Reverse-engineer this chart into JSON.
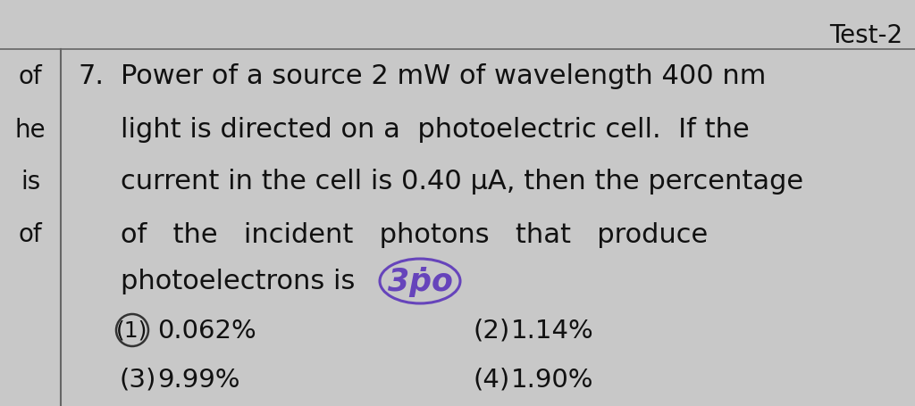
{
  "title": "Test-2",
  "bg_color": "#c8c8c8",
  "paper_color": "#d4d4d4",
  "question_number": "7.",
  "left_labels": [
    "of",
    "he",
    "is",
    "of"
  ],
  "line1": "Power of a source 2 mW of wavelength 400 nm",
  "line2": "light is directed on a  photoelectric cell.  If the",
  "line3": "current in the cell is 0.40 μA, then the percentage",
  "line4": "of   the   incident   photons   that   produce",
  "line5": "photoelectrons is",
  "annot_text": "3ṗo",
  "opt1_num": "(1)",
  "opt1_txt": "0.062%",
  "opt2_num": "(2)",
  "opt2_txt": "1.14%",
  "opt3_num": "(3)",
  "opt3_txt": "9.99%",
  "opt4_num": "(4)",
  "opt4_txt": "1.90%",
  "fs_title": 20,
  "fs_body": 22,
  "fs_opts": 21,
  "text_color": "#111111",
  "line_color": "#666666",
  "annot_color": "#6644bb",
  "circle1_color": "#333333"
}
